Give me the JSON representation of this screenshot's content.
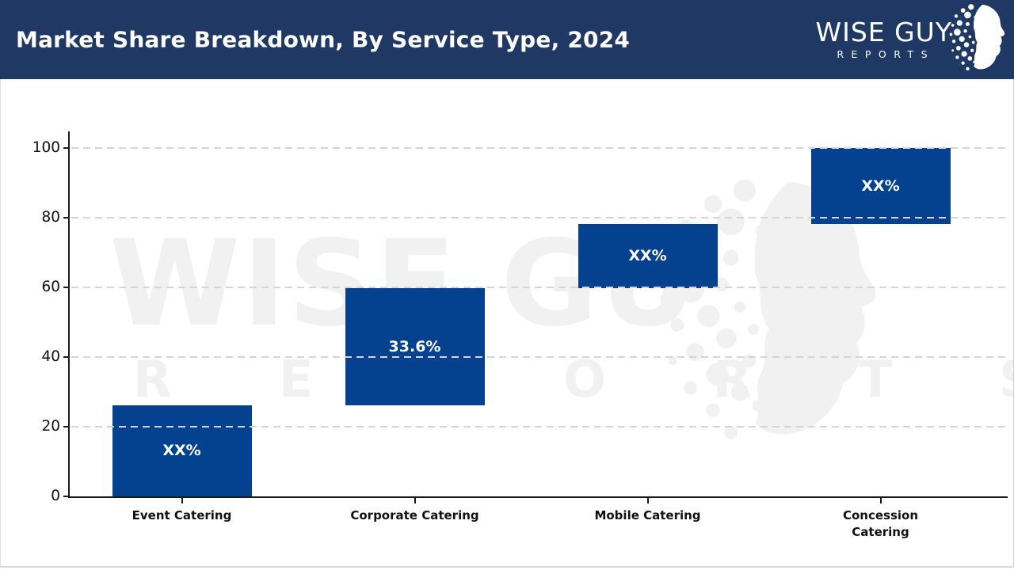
{
  "header": {
    "title": "Market Share Breakdown, By Service Type, 2024",
    "bg_color": "#1f3864",
    "title_color": "#ffffff",
    "logo": {
      "line1": "WISE GUY",
      "line2": "REPORTS"
    }
  },
  "watermark": {
    "line1": "WISE GU",
    "line2": "R E P O R T S"
  },
  "chart_data": {
    "type": "bar",
    "subtype": "waterfall",
    "title": "Market Share Breakdown, By Service Type, 2024",
    "categories": [
      "Event Catering",
      "Corporate Catering",
      "Mobile Catering",
      "Concession Catering"
    ],
    "category_labels": [
      "Event Catering",
      "Corporate Catering",
      "Mobile Catering",
      "Concession\nCatering"
    ],
    "segments": [
      {
        "category": "Event Catering",
        "start": 0,
        "end": 26.2,
        "value_label": "XX%"
      },
      {
        "category": "Corporate Catering",
        "start": 26.2,
        "end": 59.8,
        "value": 33.6,
        "value_label": "33.6%"
      },
      {
        "category": "Mobile Catering",
        "start": 59.8,
        "end": 78.2,
        "value_label": "XX%"
      },
      {
        "category": "Concession Catering",
        "start": 78.2,
        "end": 100,
        "value_label": "XX%"
      }
    ],
    "y_ticks": [
      0,
      20,
      40,
      60,
      80,
      100
    ],
    "ylim": [
      0,
      104.5
    ],
    "xlabel": "",
    "ylabel": "",
    "legend": "none",
    "grid": "horizontal-dashed",
    "bar_color": "#04428f",
    "bar_label_color": "#ffffff",
    "grid_color": "#d5d5d5",
    "axis_color": "#1a1a1a"
  }
}
